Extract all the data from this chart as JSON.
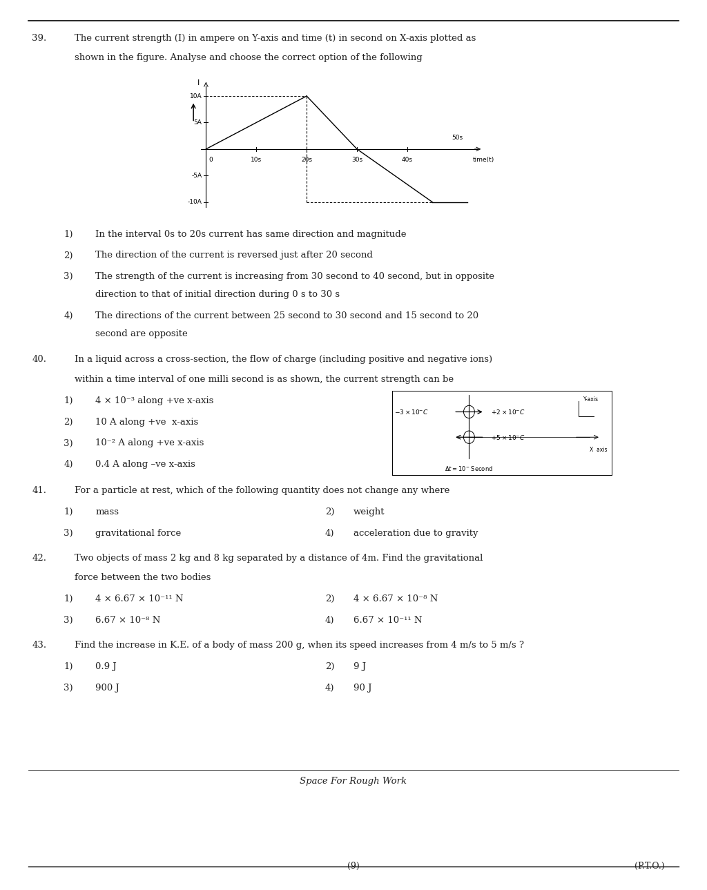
{
  "page_width": 10.24,
  "page_height": 12.89,
  "background_color": "#ffffff",
  "page_number": "(9)",
  "pto": "(P.T.O.)",
  "q39_number": "39.",
  "q39_text_line1": "The current strength (I) in ampere on Y-axis and time (t) in second on X-axis plotted as",
  "q39_text_line2": "shown in the figure. Analyse and choose the correct option of the following",
  "q39_options": [
    [
      "1)",
      "In the interval 0s to 20s current has same direction and magnitude",
      ""
    ],
    [
      "2)",
      "The direction of the current is reversed just after 20 second",
      ""
    ],
    [
      "3)",
      "The strength of the current is increasing from 30 second to 40 second, but in opposite",
      "direction to that of initial direction during 0 s to 30 s"
    ],
    [
      "4)",
      "The directions of the current between 25 second to 30 second and 15 second to 20",
      "second are opposite"
    ]
  ],
  "q40_number": "40.",
  "q40_text_line1": "In a liquid across a cross-section, the flow of charge (including positive and negative ions)",
  "q40_text_line2": "within a time interval of one milli second is as shown, the current strength can be",
  "q40_options": [
    [
      "1)",
      "4 × 10⁻³ along +ve x-axis"
    ],
    [
      "2)",
      "10 A along +ve  x-axis"
    ],
    [
      "3)",
      "10⁻² A along +ve x-axis"
    ],
    [
      "4)",
      "0.4 A along –ve x-axis"
    ]
  ],
  "q41_number": "41.",
  "q41_text": "For a particle at rest, which of the following quantity does not change any where",
  "q41_options": [
    [
      "1)",
      "mass",
      "2)",
      "weight"
    ],
    [
      "3)",
      "gravitational force",
      "4)",
      "acceleration due to gravity"
    ]
  ],
  "q42_number": "42.",
  "q42_text_line1": "Two objects of mass 2 kg and 8 kg separated by a distance of 4m. Find the gravitational",
  "q42_text_line2": "force between the two bodies",
  "q42_options": [
    [
      "1)",
      "4 × 6.67 × 10⁻¹¹ N",
      "2)",
      "4 × 6.67 × 10⁻⁸ N"
    ],
    [
      "3)",
      "6.67 × 10⁻⁸ N",
      "4)",
      "6.67 × 10⁻¹¹ N"
    ]
  ],
  "q43_number": "43.",
  "q43_text": "Find the increase in K.E. of a body of mass 200 g, when its speed increases from 4 m/s to 5 m/s ?",
  "q43_options": [
    [
      "1)",
      "0.9 J",
      "2)",
      "9 J"
    ],
    [
      "3)",
      "900 J",
      "4)",
      "90 J"
    ]
  ],
  "space_text": "Space For Rough Work"
}
